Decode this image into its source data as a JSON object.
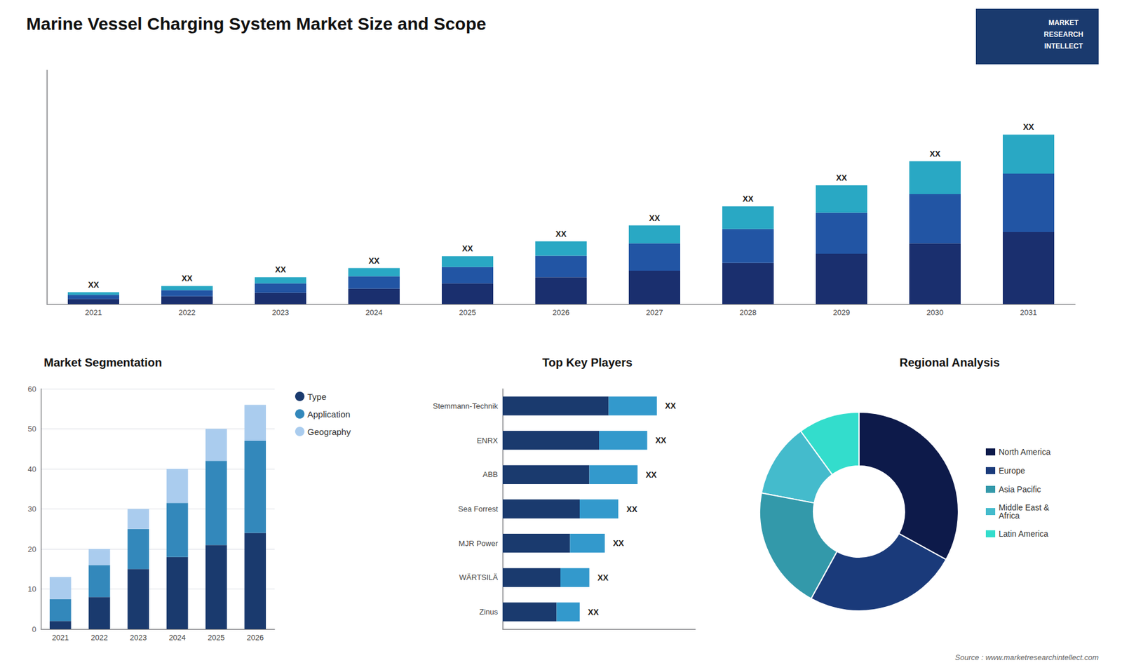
{
  "title": "Marine Vessel Charging System Market Size and Scope",
  "annotations": [
    "MARKET",
    "RESEARCH",
    "INTELLECT",
    "Source : www.marketresearchintellect.com"
  ],
  "chart_data": [
    {
      "type": "bar",
      "stacked": true,
      "categories": [
        "2021",
        "2022",
        "2023",
        "2024",
        "2025",
        "2026",
        "2027",
        "2028",
        "2029",
        "2030",
        "2031"
      ],
      "series": [
        {
          "color": "#1a2f6e",
          "values": [
            1.0,
            1.5,
            2.2,
            3.0,
            4.0,
            5.2,
            6.5,
            8.0,
            9.8,
            11.8,
            14.0
          ]
        },
        {
          "color": "#2255a4",
          "values": [
            0.8,
            1.2,
            1.8,
            2.4,
            3.2,
            4.2,
            5.3,
            6.6,
            8.0,
            9.6,
            11.4
          ]
        },
        {
          "color": "#29a8c4",
          "values": [
            0.5,
            0.8,
            1.2,
            1.6,
            2.1,
            2.8,
            3.5,
            4.4,
            5.3,
            6.4,
            7.6
          ]
        }
      ],
      "ylim": [
        0,
        45.54
      ],
      "tick_labels": "x",
      "grid": false,
      "annotations": [
        "XX",
        "XX",
        "XX",
        "XX",
        "XX",
        "XX",
        "XX",
        "XX",
        "XX",
        "XX",
        "XX"
      ]
    },
    {
      "type": "bar",
      "title": "Market Segmentation",
      "stacked": true,
      "categories": [
        "2021",
        "2022",
        "2023",
        "2024",
        "2025",
        "2026"
      ],
      "series": [
        {
          "name": "Type",
          "color": "#1a3a6e",
          "values": [
            2.0,
            8.0,
            15.0,
            18.0,
            21.0,
            24.0
          ]
        },
        {
          "name": "Application",
          "color": "#3388bb",
          "values": [
            5.5,
            8.0,
            10.0,
            13.5,
            21.0,
            23.0
          ]
        },
        {
          "name": "Geography",
          "color": "#aaccee",
          "values": [
            5.5,
            4.0,
            5.0,
            8.5,
            8.0,
            9.0
          ]
        }
      ],
      "ylim": [
        0,
        60
      ],
      "yticks": [
        0,
        10,
        20,
        30,
        40,
        50,
        60
      ],
      "grid": true,
      "legend": "upper right"
    },
    {
      "type": "bar",
      "title": "Top Key Players",
      "orientation": "horizontal",
      "stacked": true,
      "categories": [
        "Stemmann-Technik",
        "ENRX",
        "ABB",
        "Sea Forrest",
        "MJR Power",
        "WÄRTSILÄ",
        "Zinus"
      ],
      "series": [
        {
          "color": "#1a3a6e",
          "values": [
            5.5,
            5.0,
            4.5,
            4.0,
            3.5,
            3.0,
            2.8
          ]
        },
        {
          "color": "#3399cc",
          "values": [
            2.5,
            2.5,
            2.5,
            2.0,
            1.8,
            1.5,
            1.2
          ]
        }
      ],
      "xlim": [
        0,
        10
      ],
      "tick_labels": "y",
      "grid": false,
      "annotations": [
        "XX",
        "XX",
        "XX",
        "XX",
        "XX",
        "XX",
        "XX"
      ]
    },
    {
      "type": "pie",
      "title": "Regional Analysis",
      "categories": [
        "Latin America",
        "Middle East &\nAfrica",
        "Asia Pacific",
        "Europe",
        "North America"
      ],
      "values": [
        10,
        12,
        20,
        25,
        33
      ],
      "colors": [
        "#33ddcc",
        "#44bbcc",
        "#3399aa",
        "#1a3a7a",
        "#0d1a4a"
      ],
      "legend": "right",
      "data_labels": false
    }
  ]
}
